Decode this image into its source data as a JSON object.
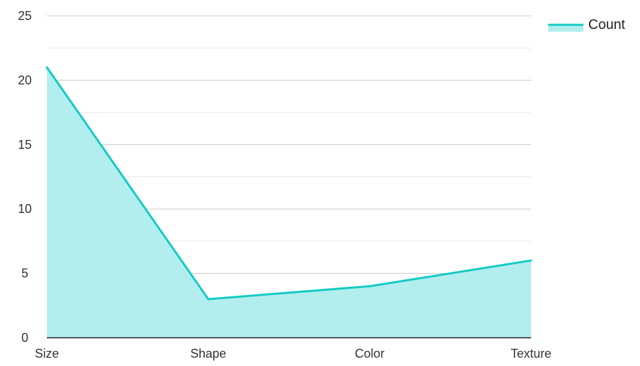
{
  "chart_data": {
    "type": "area",
    "categories": [
      "Size",
      "Shape",
      "Color",
      "Texture"
    ],
    "series": [
      {
        "name": "Count",
        "values": [
          21,
          3,
          4,
          6
        ]
      }
    ],
    "ylim": [
      0,
      25
    ],
    "yticks": [
      0,
      5,
      10,
      15,
      20,
      25
    ],
    "grid": true,
    "legend": "top-right",
    "colors": {
      "line": "#12cbc4",
      "fill": "#b2eeee",
      "grid_major": "#c8c8c8",
      "grid_minor": "#e6e6e6",
      "axis": "#222222"
    }
  }
}
